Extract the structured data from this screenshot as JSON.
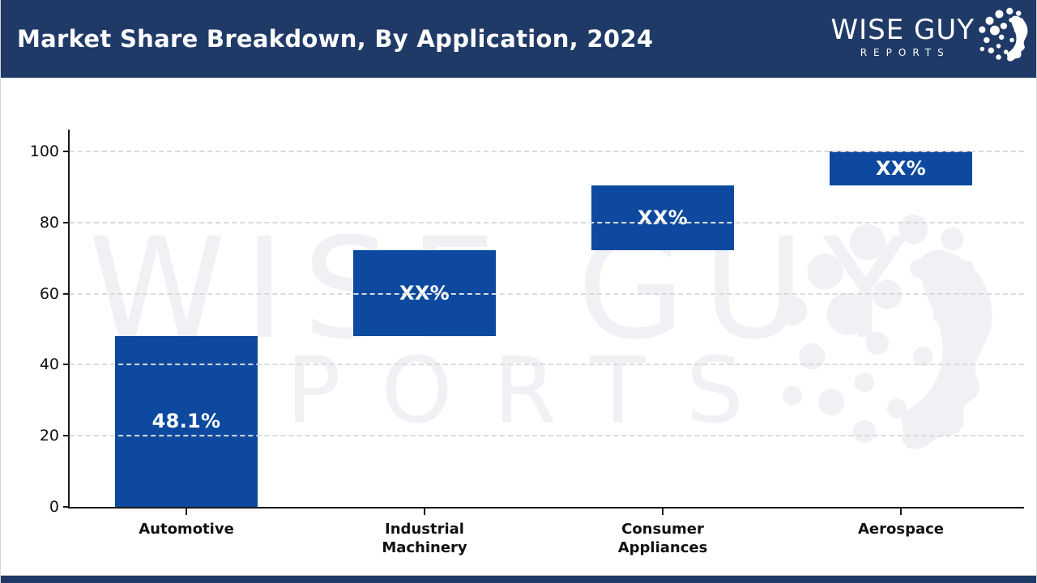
{
  "header": {
    "title": "Market Share Breakdown, By Application, 2024",
    "logo": {
      "line1": "WISE GUY",
      "line2": "REPORTS"
    }
  },
  "watermark": {
    "line1": "WISE GUY",
    "line2": "PORTS"
  },
  "theme": {
    "header_bg": "#203a68",
    "footer_bg": "#203a68",
    "bar_color": "#0d499e",
    "grid_color": "#dadada",
    "axis_color": "#1a1a1a",
    "bar_label_color": "#ffffff",
    "watermark_color": "#f0f1f4"
  },
  "chart_data": {
    "type": "bar",
    "subtype": "waterfall",
    "title": "Market Share Breakdown, By Application, 2024",
    "categories": [
      "Automotive",
      "Industrial\nMachinery",
      "Consumer\nAppliances",
      "Aerospace"
    ],
    "series": [
      {
        "name": "Market Share",
        "segments": [
          {
            "category": "Automotive",
            "start": 0,
            "end": 48.1,
            "label": "48.1%"
          },
          {
            "category": "Industrial Machinery",
            "start": 48.1,
            "end": 72.3,
            "label": "XX%"
          },
          {
            "category": "Consumer Appliances",
            "start": 72.3,
            "end": 90.4,
            "label": "XX%"
          },
          {
            "category": "Aerospace",
            "start": 90.4,
            "end": 100,
            "label": "XX%"
          }
        ]
      }
    ],
    "xlabel": "",
    "ylabel": "",
    "ylim": [
      0,
      100
    ],
    "yticks": [
      0,
      20,
      40,
      60,
      80,
      100
    ],
    "grid": "horizontal-dashed",
    "grid_above_bars": true,
    "legend": "none",
    "bar_value_labels_position": "center"
  }
}
